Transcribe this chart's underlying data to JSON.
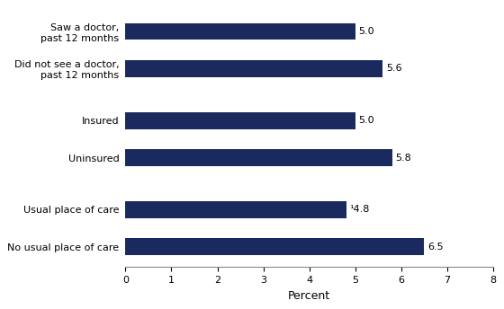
{
  "categories": [
    "No usual place of care",
    "Usual place of care",
    "Uninsured",
    "Insured",
    "Did not see a doctor,\npast 12 months",
    "Saw a doctor,\npast 12 months"
  ],
  "values": [
    6.5,
    4.8,
    5.8,
    5.0,
    5.6,
    5.0
  ],
  "labels": [
    "6.5",
    "¹4.8",
    "5.8",
    "5.0",
    "5.6",
    "5.0"
  ],
  "bar_color": "#1b2a5e",
  "xlabel": "Percent",
  "xlim": [
    0,
    8
  ],
  "xticks": [
    0,
    1,
    2,
    3,
    4,
    5,
    6,
    7,
    8
  ],
  "bar_height": 0.45,
  "group_positions": [
    0,
    1.0,
    2.4,
    3.4,
    4.8,
    5.8
  ],
  "ylim_bottom": -0.55,
  "ylim_top": 6.45,
  "label_fontsize": 8.0,
  "tick_fontsize": 8.0,
  "xlabel_fontsize": 9.0
}
